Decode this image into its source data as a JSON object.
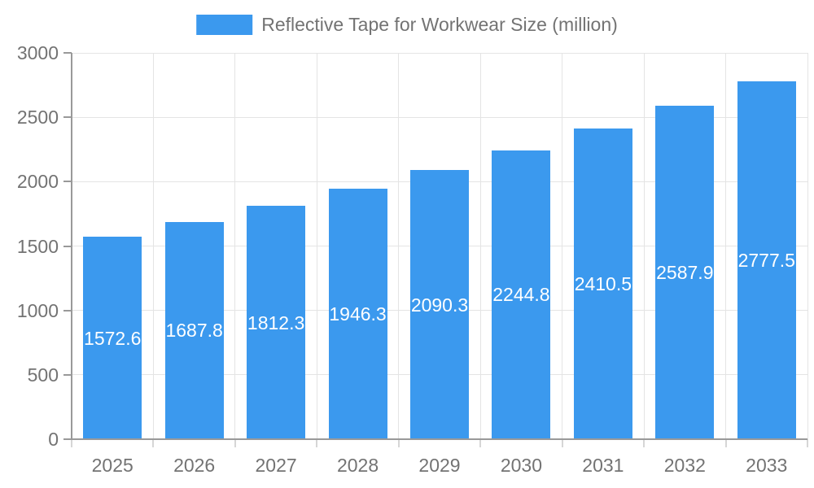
{
  "chart_data": {
    "type": "bar",
    "title": "",
    "legend_position": "top",
    "series": [
      {
        "name": "Reflective Tape for Workwear Size (million)",
        "values": [
          1572.6,
          1687.8,
          1812.3,
          1946.3,
          2090.3,
          2244.8,
          2410.5,
          2587.9,
          2777.5
        ]
      }
    ],
    "categories": [
      "2025",
      "2026",
      "2027",
      "2028",
      "2029",
      "2030",
      "2031",
      "2032",
      "2033"
    ],
    "value_labels": [
      "1572.6",
      "1687.8",
      "1812.3",
      "1946.3",
      "2090.3",
      "2244.8",
      "2410.5",
      "2587.9",
      "2777.5"
    ],
    "ylim": [
      0,
      3000
    ],
    "yticks": [
      "0",
      "500",
      "1000",
      "1500",
      "2000",
      "2500",
      "3000"
    ],
    "grid": true,
    "colors": {
      "bar": "#3B99EE",
      "axis": "#999999",
      "gridline": "#E4E4E4",
      "x_tick": "#D6D6D6",
      "tick_label": "#737373",
      "value_label": "#FFFFFF",
      "background": "#FFFFFF"
    }
  }
}
